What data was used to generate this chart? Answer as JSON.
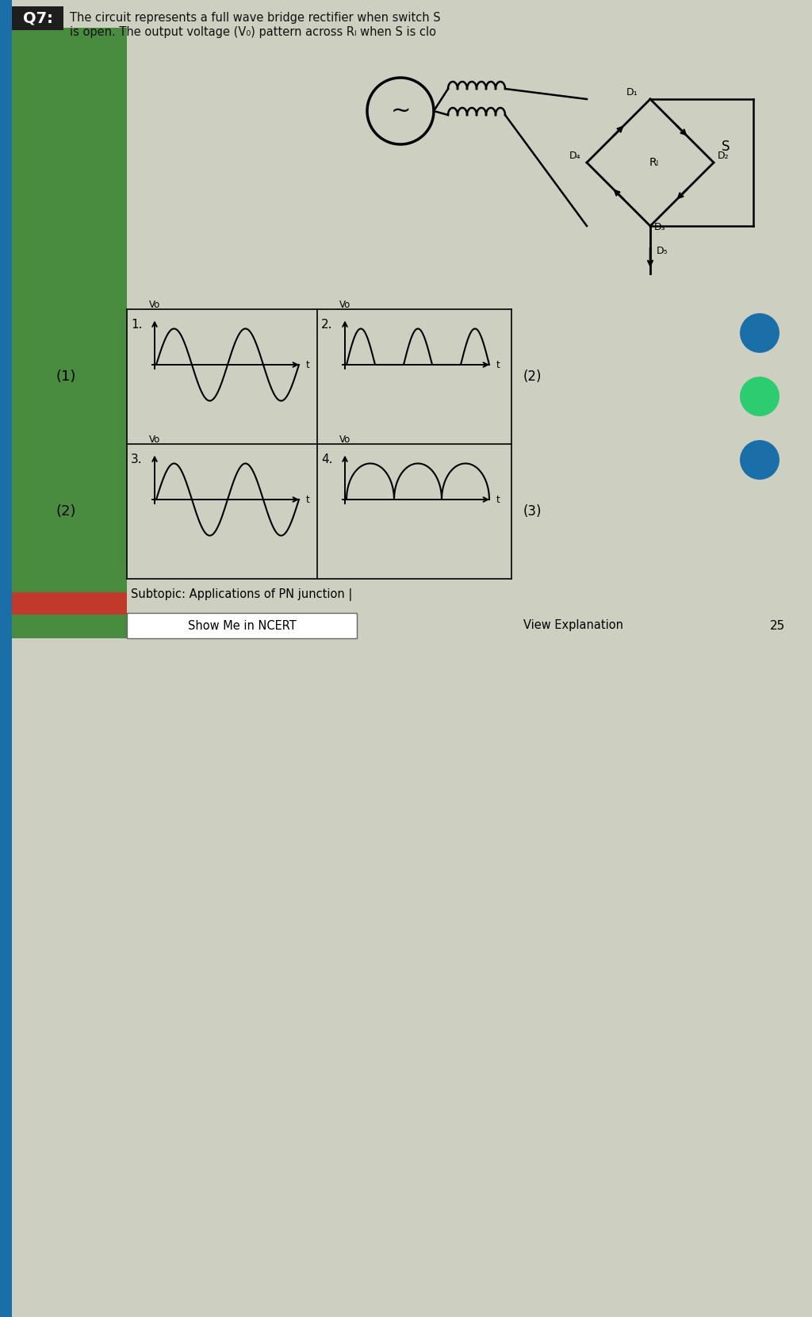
{
  "bg_color": "#cdd0c0",
  "q7_bg": "#222222",
  "q7_text": "Q7:",
  "question_line1": "The circuit represents a full wave bridge rectifier when switch S",
  "question_line2": "is open. The output voltage (V₀) pattern across Rₗ when S is clo",
  "green_bar_color": "#4a8c3f",
  "red_bar_color": "#c0392b",
  "blue_sidebar_color": "#2980b9",
  "teal_bar_color": "#2a9d8f",
  "white": "#ffffff",
  "black": "#111111",
  "subtopic_text": "Subtopic: Applications of PN junction |",
  "show_me_text": "Show Me in NCERT",
  "view_explanation_text": "View Explanation",
  "footer_num": "25",
  "table_option_labels": [
    "(1)",
    "(2)"
  ],
  "right_labels": [
    "(2)",
    "(3)"
  ]
}
